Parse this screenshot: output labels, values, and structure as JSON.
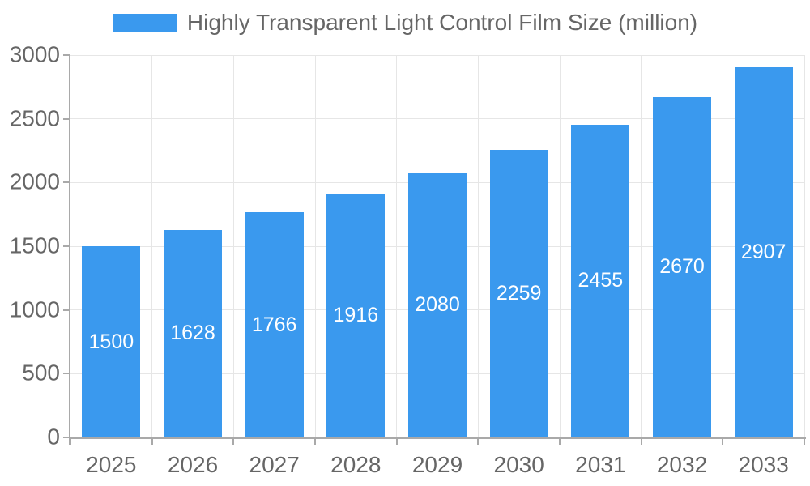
{
  "legend": {
    "label": "Highly Transparent Light Control Film Size (million)"
  },
  "colors": {
    "bar": "#3A99EE",
    "grid": "#E6E6E6",
    "axis": "#A9A9A9",
    "tick_text": "#666666",
    "legend_text": "#666666",
    "bar_label": "#FFFFFF",
    "background": "#FFFFFF"
  },
  "chart_data": {
    "type": "bar",
    "title": "Highly Transparent Light Control Film Size (million)",
    "categories": [
      "2025",
      "2026",
      "2027",
      "2028",
      "2029",
      "2030",
      "2031",
      "2032",
      "2033"
    ],
    "series": [
      {
        "name": "Highly Transparent Light Control Film Size (million)",
        "values": [
          1500,
          1628,
          1766,
          1916,
          2080,
          2259,
          2455,
          2670,
          2907
        ]
      }
    ],
    "value_labels": "inside-center",
    "xlabel": "",
    "ylabel": "",
    "ylim": [
      0,
      3000
    ],
    "y_ticks": [
      0,
      500,
      1000,
      1500,
      2000,
      2500,
      3000
    ],
    "grid": true,
    "legend_position": "top"
  }
}
